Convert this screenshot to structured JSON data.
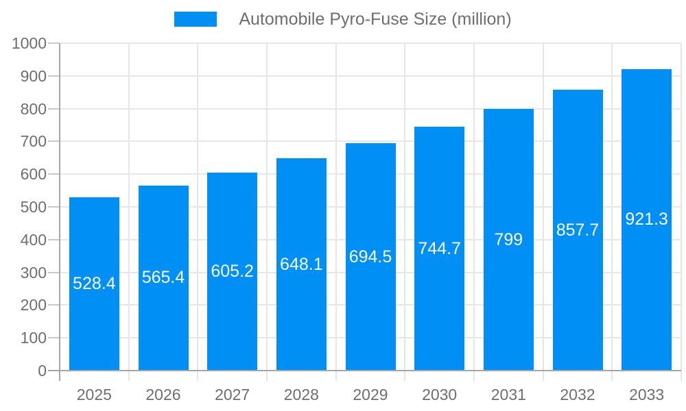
{
  "chart_data": {
    "type": "bar",
    "title": "",
    "xlabel": "",
    "ylabel": "",
    "legend": {
      "label": "Automobile Pyro-Fuse Size (million)",
      "position": "top"
    },
    "categories": [
      "2025",
      "2026",
      "2027",
      "2028",
      "2029",
      "2030",
      "2031",
      "2032",
      "2033"
    ],
    "series": [
      {
        "name": "Automobile Pyro-Fuse Size (million)",
        "values": [
          528.4,
          565.4,
          605.2,
          648.1,
          694.5,
          744.7,
          799,
          857.7,
          921.3
        ],
        "data_labels": [
          "528.4",
          "565.4",
          "605.2",
          "648.1",
          "694.5",
          "744.7",
          "799",
          "857.7",
          "921.3"
        ]
      }
    ],
    "ylim": [
      0,
      1000
    ],
    "y_ticks": [
      0,
      100,
      200,
      300,
      400,
      500,
      600,
      700,
      800,
      900,
      1000
    ],
    "grid": true,
    "colors": {
      "bar": "#008ff5",
      "axis_label": "#6e6e6e",
      "legend_label": "#6e6e6e",
      "data_label": "#ffffff",
      "gridline": "#e6e6e6",
      "tick": "#c9c9c9",
      "axis_line": "#a6a6a6",
      "background": "#ffffff"
    }
  }
}
